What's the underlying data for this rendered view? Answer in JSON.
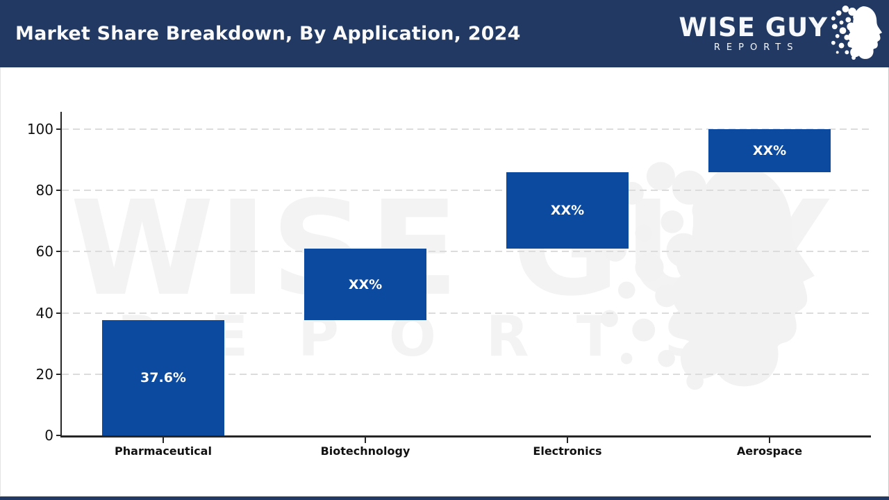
{
  "header": {
    "title": "Market Share Breakdown, By Application, 2024",
    "logo": {
      "line1": "WISE GUY",
      "line2": "REPORTS"
    }
  },
  "watermark": {
    "line1": "WISE GUY",
    "line2": "REPORTS"
  },
  "colors": {
    "header_bg": "#213963",
    "footer_bg": "#213963",
    "bar": "#0b4a9f",
    "bar_label": "#ffffff",
    "axis": "#262626",
    "gridline": "#dcdcdc",
    "watermark": "#f3f3f3"
  },
  "chart_data": {
    "type": "bar",
    "subtype": "waterfall",
    "title": "Market Share Breakdown, By Application, 2024",
    "categories": [
      "Pharmaceutical",
      "Biotechnology",
      "Electronics",
      "Aerospace"
    ],
    "series": [
      {
        "name": "Market Share",
        "segments": [
          {
            "category": "Pharmaceutical",
            "start": 0,
            "end": 37.6,
            "label": "37.6%"
          },
          {
            "category": "Biotechnology",
            "start": 37.6,
            "end": 61,
            "label": "XX%"
          },
          {
            "category": "Electronics",
            "start": 61,
            "end": 86,
            "label": "XX%"
          },
          {
            "category": "Aerospace",
            "start": 86,
            "end": 100,
            "label": "XX%"
          }
        ]
      }
    ],
    "xlabel": "",
    "ylabel": "",
    "yticks": [
      0,
      20,
      40,
      60,
      80,
      100
    ],
    "ylim": [
      0,
      105
    ],
    "grid": "dashed-horizontal",
    "legend": "none"
  }
}
